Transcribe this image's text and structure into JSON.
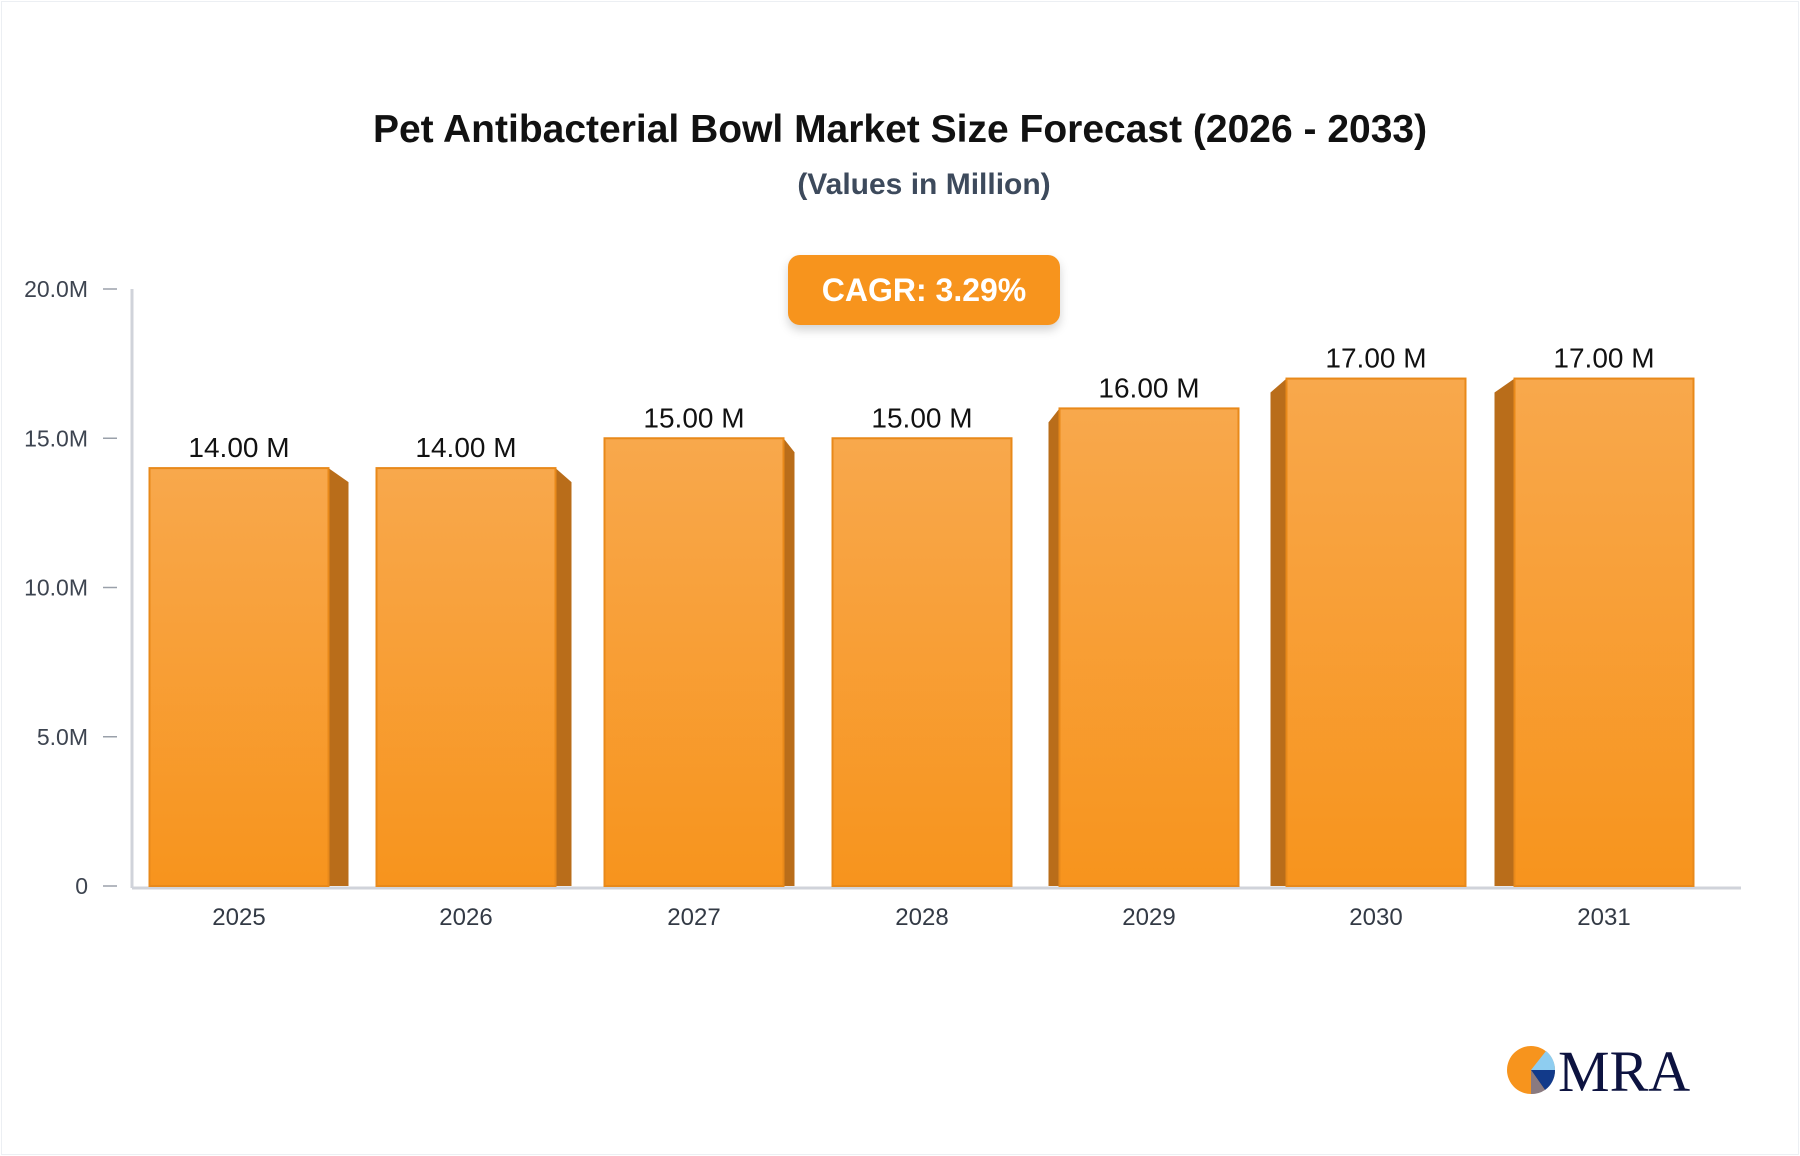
{
  "chart_data": {
    "type": "bar",
    "title": "Pet Antibacterial Bowl Market Size Forecast (2026 - 2033)",
    "subtitle": "(Values in Million)",
    "annotation": "CAGR: 3.29%",
    "categories": [
      "2025",
      "2026",
      "2027",
      "2028",
      "2029",
      "2030",
      "2031"
    ],
    "values": [
      14,
      14,
      15,
      15,
      16,
      17,
      17
    ],
    "data_labels": [
      "14.00 M",
      "14.00 M",
      "15.00 M",
      "15.00 M",
      "16.00 M",
      "17.00 M",
      "17.00 M"
    ],
    "ylim": [
      0,
      20
    ],
    "yticks": [
      0,
      5,
      10,
      15,
      20
    ],
    "ytick_labels": [
      "0",
      "5.0M",
      "10.0M",
      "15.0M",
      "20.0M"
    ],
    "xlabel": "",
    "ylabel": "",
    "grid": false,
    "colors": {
      "bar_top": "#f8a84c",
      "bar_bottom": "#f7941d",
      "bar_side": "#b96d1a",
      "axis": "#d0d3da",
      "cagr_bg": "#f7941d"
    }
  },
  "logo": {
    "text": "MRA"
  }
}
